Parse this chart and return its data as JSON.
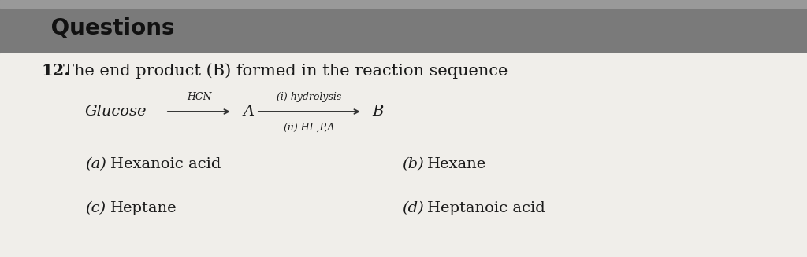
{
  "question_number": "12.",
  "question_text": " The end product (B) formed in the reaction sequence",
  "reactant": "Glucose",
  "intermediate": "A",
  "product": "B",
  "arrow1_label_top": "HCN",
  "arrow2_label_top": "(i) hydrolysis",
  "arrow2_label_bottom": "(ii) HI ,P,Δ",
  "options": [
    {
      "label": "a",
      "text": "Hexanoic acid"
    },
    {
      "label": "b",
      "text": "Hexane"
    },
    {
      "label": "c",
      "text": "Heptane"
    },
    {
      "label": "d",
      "text": "Heptanoic acid"
    }
  ],
  "header_text": " Questions",
  "header_bg": "#7a7a7a",
  "body_bg": "#e8e4df",
  "white_bg": "#f0eeea",
  "text_color": "#1a1a1a",
  "header_fontsize": 20,
  "title_fontsize": 14,
  "body_fontsize": 13,
  "option_fontsize": 13,
  "small_fontsize": 9
}
